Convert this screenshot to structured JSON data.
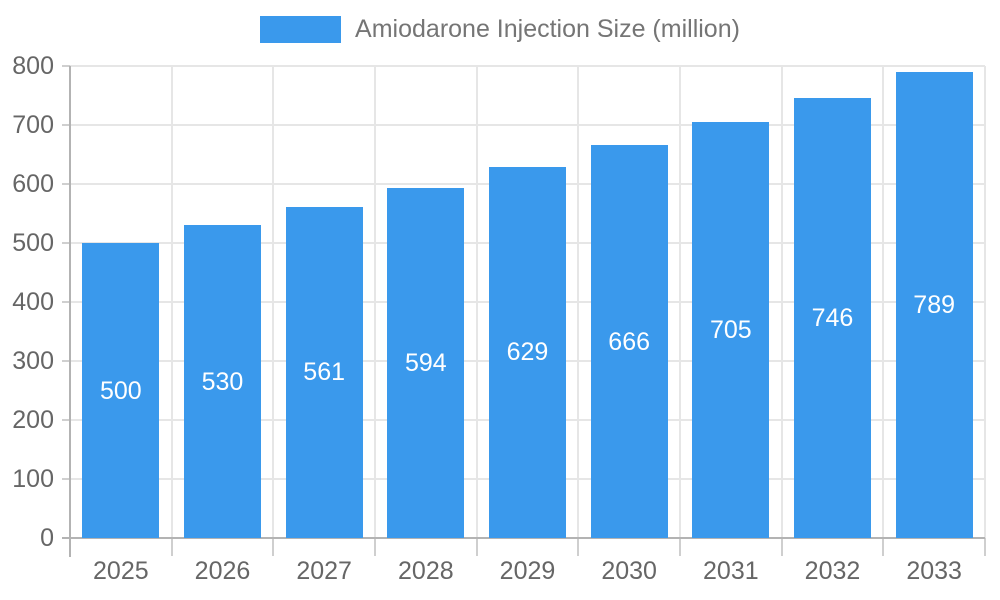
{
  "legend": {
    "label": "Amiodarone Injection Size (million)"
  },
  "chart_data": {
    "type": "bar",
    "title": "Amiodarone Injection Size (million)",
    "categories": [
      "2025",
      "2026",
      "2027",
      "2028",
      "2029",
      "2030",
      "2031",
      "2032",
      "2033"
    ],
    "values": [
      500,
      530,
      561,
      594,
      629,
      666,
      705,
      746,
      789
    ],
    "xlabel": "",
    "ylabel": "",
    "ylim": [
      0,
      800
    ],
    "ytick_step": 100,
    "grid": true,
    "legend_position": "top-center",
    "bar_labels_inside": true,
    "colors": {
      "bar": "#3A99EC",
      "bar_label": "#ffffff",
      "grid": "#e6e6e6",
      "axis": "#b3b3b3",
      "tick": "#cfcfcf",
      "axis_text": "#666666",
      "legend_text": "#757575",
      "background": "#ffffff"
    }
  }
}
